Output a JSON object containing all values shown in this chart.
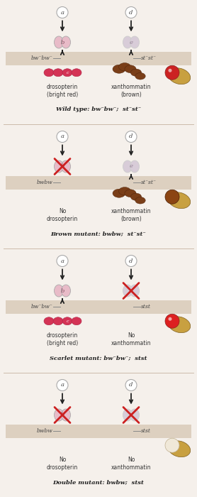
{
  "fig_bg": "#f5f0eb",
  "panel_bg": "#ddd0c0",
  "fig_w": 2.78,
  "fig_h": 7.0,
  "dpi": 100,
  "panels": [
    {
      "title_parts": [
        "Wild type: ",
        "bw",
        "+",
        "bw",
        "+",
        ";  ",
        "st",
        "+",
        "st",
        "+"
      ],
      "title_plain": "Wild type: bw⁻bw⁻;  st⁻st⁻",
      "left_label": "bw⁻bw⁻",
      "right_label": "st⁻st⁻",
      "left_blocked": false,
      "right_blocked": false,
      "left_product": "drosopterin\n(bright red)",
      "right_product": "xanthommatin\n(brown)",
      "eye_type": "wildtype",
      "show_left_icon": true,
      "show_right_icon": true
    },
    {
      "title_plain": "Brown mutant: bwbw;  st⁻st⁻",
      "left_label": "bwbw",
      "right_label": "st⁻st⁻",
      "left_blocked": true,
      "right_blocked": false,
      "left_product": "No\ndrosopterin",
      "right_product": "xanthommatin\n(brown)",
      "eye_type": "brown",
      "show_left_icon": false,
      "show_right_icon": true
    },
    {
      "title_plain": "Scarlet mutant: bw⁻bw⁻;  stst",
      "left_label": "bw⁻bw⁻",
      "right_label": "stst",
      "left_blocked": false,
      "right_blocked": true,
      "left_product": "drosopterin\n(bright red)",
      "right_product": "No\nxanthommatin",
      "eye_type": "scarlet",
      "show_left_icon": true,
      "show_right_icon": false
    },
    {
      "title_plain": "Double mutant: bwbw;  stst",
      "left_label": "bwbw",
      "right_label": "stst",
      "left_blocked": true,
      "right_blocked": true,
      "left_product": "No\ndrosopterin",
      "right_product": "No\nxanthommatin",
      "eye_type": "white",
      "show_left_icon": false,
      "show_right_icon": false
    }
  ],
  "node_a_color": "#ffffff",
  "node_b_color_normal": "#e8bbc8",
  "node_b_color_blocked": "#e8bbc8",
  "node_d_color": "#ffffff",
  "node_e_color": "#d8d0dc",
  "arrow_color": "#222222",
  "x_color": "#cc2020",
  "drosopterin_color": "#d43355",
  "xanth_color": "#7a3e18",
  "bar_line_color": "#888888"
}
